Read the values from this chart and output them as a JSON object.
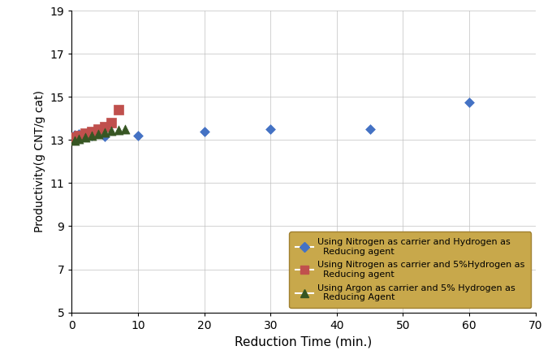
{
  "series1": {
    "label": "Using Nitrogen as carrier and Hydrogen as\n  Reducing agent",
    "color": "#4472C4",
    "marker": "D",
    "markersize": 6,
    "x": [
      0.5,
      1,
      2,
      3,
      5,
      10,
      20,
      30,
      45,
      60
    ],
    "y": [
      13.25,
      13.28,
      13.22,
      13.22,
      13.18,
      13.22,
      13.38,
      13.52,
      13.52,
      14.75
    ]
  },
  "series2": {
    "label": "Using Nitrogen as carrier and 5%Hydrogen as\n  Reducing agent",
    "color": "#C0504D",
    "marker": "s",
    "markersize": 9,
    "x": [
      0.5,
      1,
      2,
      3,
      4,
      5,
      6,
      7
    ],
    "y": [
      13.12,
      13.22,
      13.32,
      13.4,
      13.52,
      13.62,
      13.82,
      14.42
    ]
  },
  "series3": {
    "label": "Using Argon as carrier and 5% Hydrogen as\n  Reducing Agent",
    "color": "#375623",
    "marker": "^",
    "markersize": 8,
    "x": [
      0.5,
      1,
      2,
      3,
      4,
      5,
      6,
      7,
      8
    ],
    "y": [
      12.98,
      13.05,
      13.12,
      13.2,
      13.28,
      13.35,
      13.42,
      13.47,
      13.5
    ]
  },
  "xlabel": "Reduction Time (min.)",
  "ylabel": "Productivity(g CNT/g cat)",
  "xlim": [
    0,
    70
  ],
  "ylim": [
    5,
    19
  ],
  "xticks": [
    0,
    10,
    20,
    30,
    40,
    50,
    60,
    70
  ],
  "yticks": [
    5,
    7,
    9,
    11,
    13,
    15,
    17,
    19
  ],
  "legend_facecolor": "#c8a84b",
  "background_color": "#ffffff",
  "grid_color": "#c0c0c0"
}
